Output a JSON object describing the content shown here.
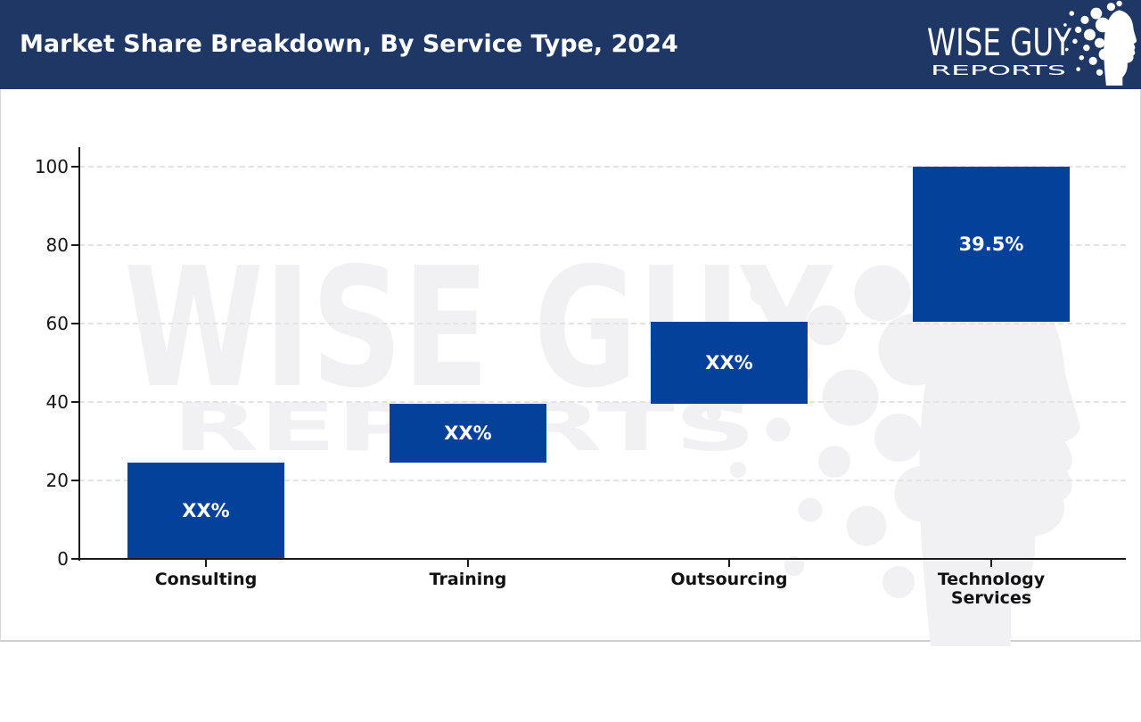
{
  "header": {
    "title": "Market Share Breakdown, By Service Type, 2024",
    "logo": {
      "name": "WISE GUY",
      "sub": "REPORTS"
    }
  },
  "watermark": {
    "name": "WISE GUY",
    "sub": "REPORTS"
  },
  "chart_data": {
    "type": "bar",
    "subtype": "waterfall",
    "title": "Market Share Breakdown, By Service Type, 2024",
    "categories": [
      "Consulting",
      "Training",
      "Outsourcing",
      "Technology Services"
    ],
    "segments": [
      {
        "category": "Consulting",
        "start": 0,
        "end": 24.5,
        "label": "XX%"
      },
      {
        "category": "Training",
        "start": 24.5,
        "end": 39.5,
        "label": "XX%"
      },
      {
        "category": "Outsourcing",
        "start": 39.5,
        "end": 60.5,
        "label": "XX%"
      },
      {
        "category": "Technology Services",
        "start": 60.5,
        "end": 100,
        "label": "39.5%"
      }
    ],
    "yticks": [
      0,
      20,
      40,
      60,
      80,
      100
    ],
    "ylim": [
      0,
      105
    ],
    "xlabel": "",
    "ylabel": "",
    "grid": "horizontal-dashed",
    "legend": "none",
    "bar_color": "#04419b",
    "bar_label_color": "#ffffff"
  },
  "colors": {
    "header_bg": "#1f3765",
    "bar": "#04419b",
    "grid": "#e3e3e3",
    "axis": "#1a1a1a",
    "watermark": "#f1f1f3"
  }
}
